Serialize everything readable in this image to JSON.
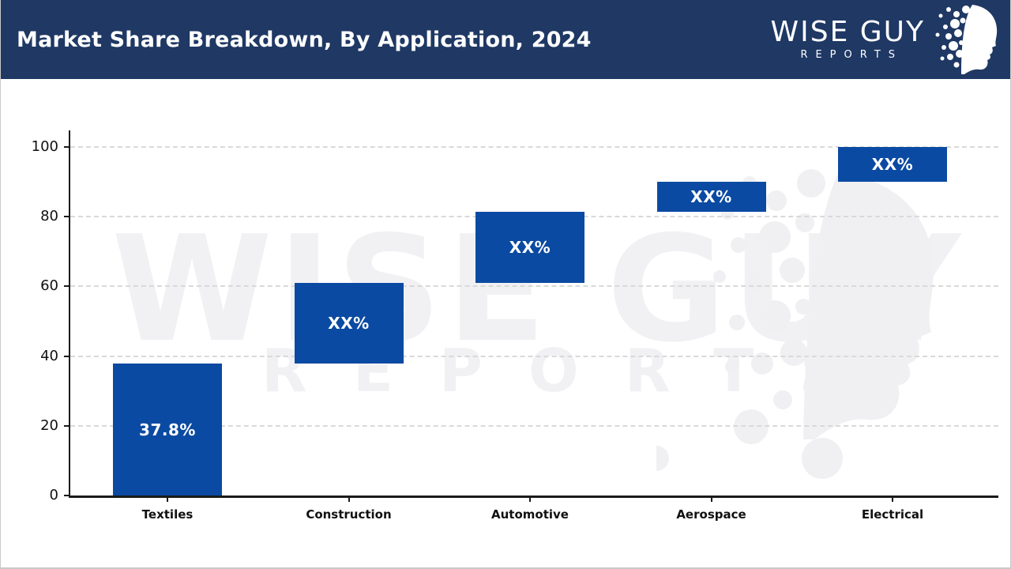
{
  "header": {
    "title": "Market Share Breakdown, By Application, 2024",
    "bg_color": "#1F3864",
    "logo": {
      "line1": "WISE GUY",
      "line2": "REPORTS"
    }
  },
  "watermark": {
    "line1": "WISE GUY",
    "line2": "REPORTS"
  },
  "chart_data": {
    "type": "bar",
    "subtype": "waterfall",
    "title": "Market Share Breakdown, By Application, 2024",
    "categories": [
      "Textiles",
      "Construction",
      "Automotive",
      "Aerospace",
      "Electrical"
    ],
    "segments": [
      {
        "category": "Textiles",
        "start": 0,
        "end": 37.8,
        "label": "37.8%"
      },
      {
        "category": "Construction",
        "start": 37.8,
        "end": 61.0,
        "label": "XX%"
      },
      {
        "category": "Automotive",
        "start": 61.0,
        "end": 81.4,
        "label": "XX%"
      },
      {
        "category": "Aerospace",
        "start": 81.4,
        "end": 90.0,
        "label": "XX%"
      },
      {
        "category": "Electrical",
        "start": 90.0,
        "end": 100.0,
        "label": "XX%"
      }
    ],
    "y_ticks": [
      0,
      20,
      40,
      60,
      80,
      100
    ],
    "ylim": [
      0,
      105
    ],
    "xlabel": "",
    "ylabel": "",
    "bar_color": "#0B4AA2",
    "grid": "horizontal-dashed",
    "gridline_color": "#d9d9d9",
    "axis_color": "#1a1a1a",
    "legend": "none"
  }
}
